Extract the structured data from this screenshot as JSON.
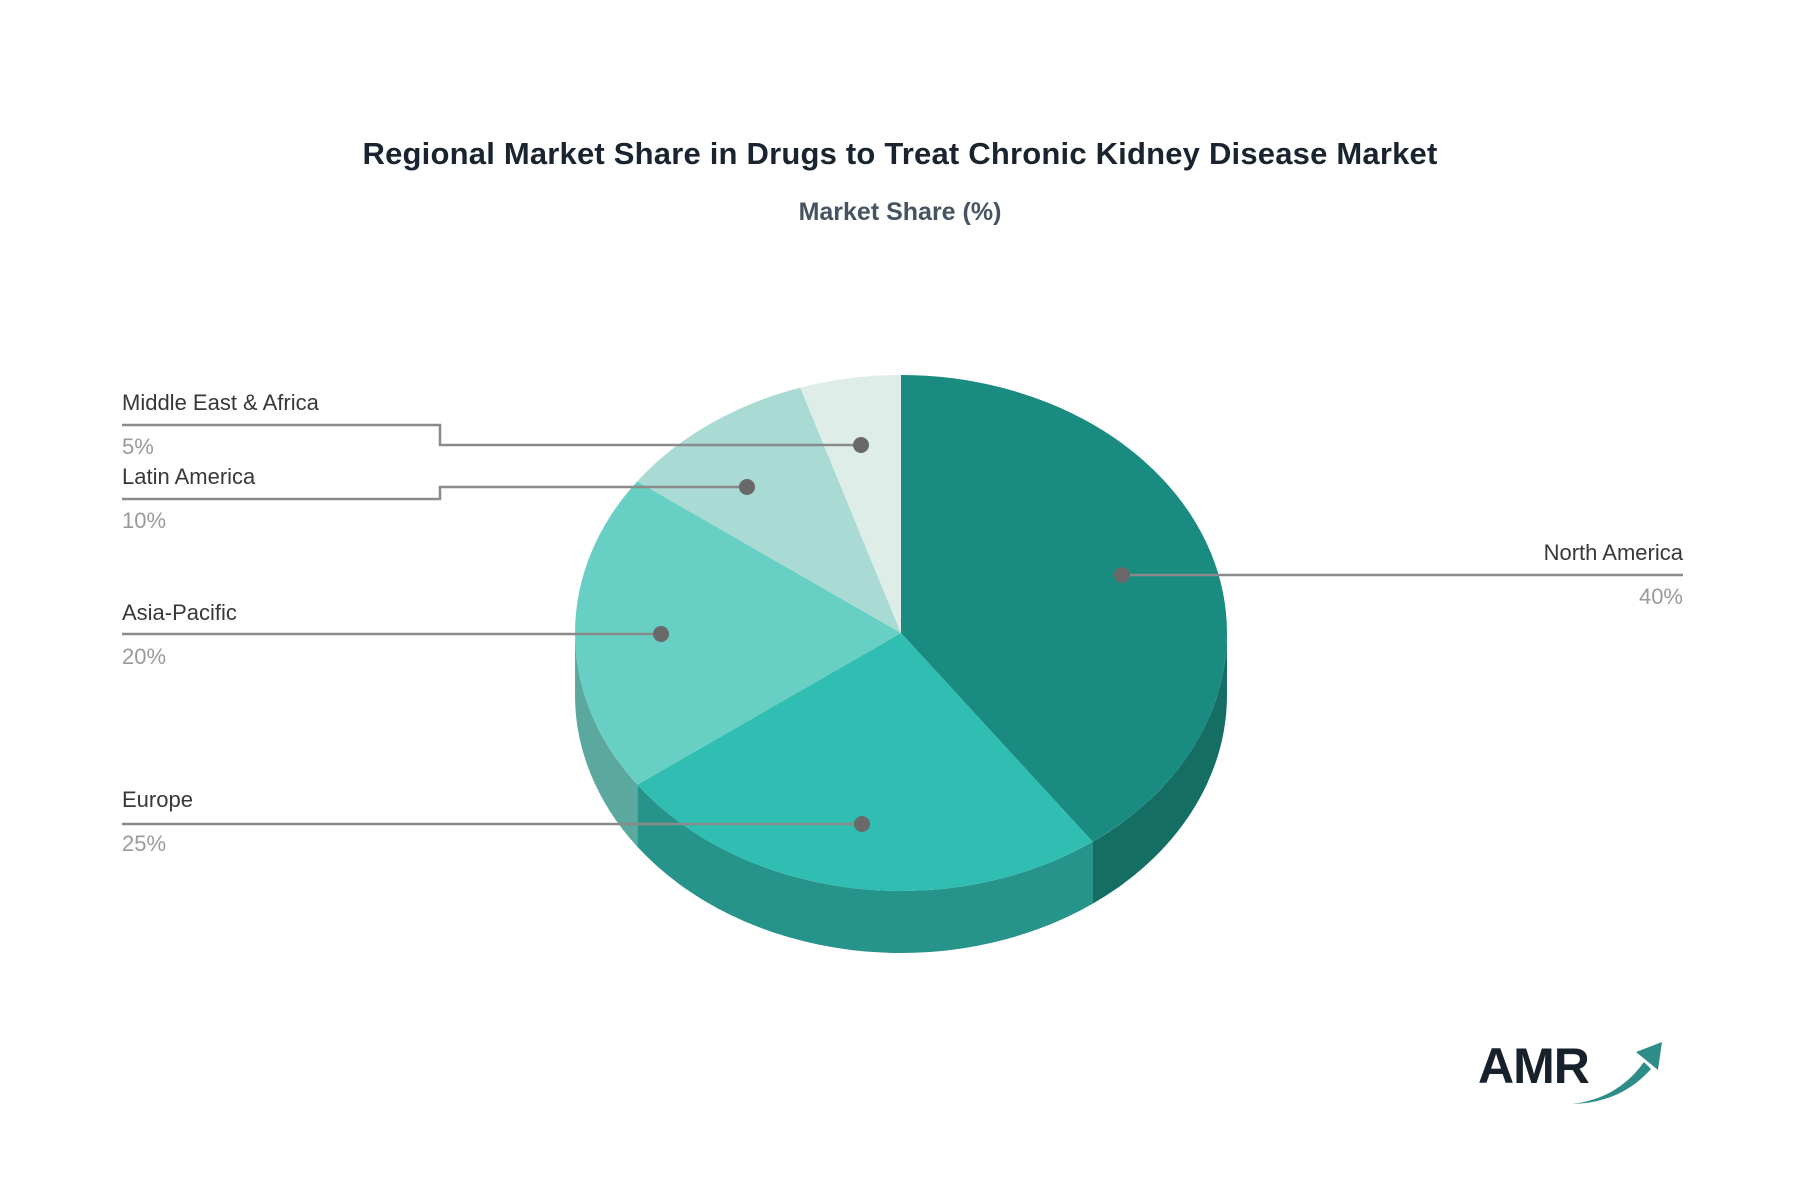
{
  "header": {
    "title": "Regional Market Share in Drugs to Treat Chronic Kidney Disease Market",
    "subtitle": "Market Share (%)"
  },
  "branding": {
    "logo_text": "AMR",
    "logo_text_color": "#16212b",
    "logo_arrow_color": "#2e8e87"
  },
  "chart_data": {
    "type": "pie",
    "style": "3d",
    "title": "Market Share (%)",
    "unit": "%",
    "direction": "clockwise",
    "start_angle_deg": 0,
    "legend_position": "callout-labels",
    "slices": [
      {
        "label": "North America",
        "value": 40,
        "display": "40%",
        "color": "#198b80",
        "side_color": "#156e64"
      },
      {
        "label": "Europe",
        "value": 25,
        "display": "25%",
        "color": "#2fbeb1",
        "side_color": "#27948b"
      },
      {
        "label": "Asia-Pacific",
        "value": 20,
        "display": "20%",
        "color": "#68cfc4",
        "side_color": "#5aa89e"
      },
      {
        "label": "Latin America",
        "value": 10,
        "display": "10%",
        "color": "#a9dbd4",
        "side_color": "#8fbdb6"
      },
      {
        "label": "Middle East & Africa",
        "value": 5,
        "display": "5%",
        "color": "#dfede9",
        "side_color": "#c2d6d1"
      }
    ],
    "callout_line_color": "#8a8a8a",
    "callout_dot_color": "#696969",
    "label_color": "#383838",
    "value_color": "#9a9a9a"
  }
}
